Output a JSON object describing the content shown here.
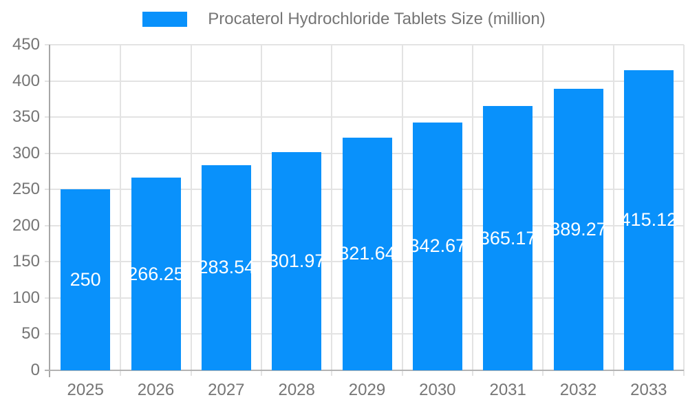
{
  "legend": {
    "label": "Procaterol Hydrochloride Tablets Size (million)"
  },
  "chart_data": {
    "type": "bar",
    "title": "Procaterol Hydrochloride Tablets Size (million)",
    "categories": [
      "2025",
      "2026",
      "2027",
      "2028",
      "2029",
      "2030",
      "2031",
      "2032",
      "2033"
    ],
    "values": [
      250,
      266.25,
      283.54,
      301.97,
      321.64,
      342.67,
      365.17,
      389.27,
      415.12
    ],
    "bar_labels": [
      "250",
      "266.25",
      "283.54",
      "301.97",
      "321.64",
      "342.67",
      "365.17",
      "389.27",
      "415.12"
    ],
    "xlabel": "",
    "ylabel": "",
    "ylim": [
      0,
      450
    ],
    "yticks": [
      0,
      50,
      100,
      150,
      200,
      250,
      300,
      350,
      400,
      450
    ],
    "grid": true,
    "legend_position": "top",
    "bar_label_position": "center-inside"
  },
  "colors": {
    "bar": "#0991fb",
    "bar_label": "#ffffff",
    "axis_text": "#757575",
    "legend_text": "#757575",
    "gridline": "#e3e3e3",
    "y_axis_line": "#a6a6a6",
    "x_axis_line": "#b3b3b3",
    "background": "#ffffff"
  }
}
